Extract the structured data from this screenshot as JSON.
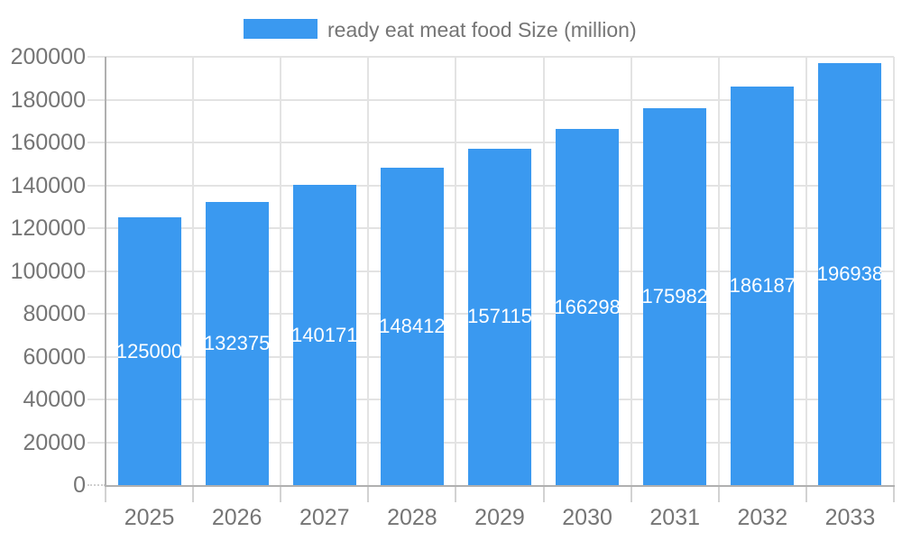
{
  "legend": {
    "label": "ready eat meat food Size (million)"
  },
  "chart_data": {
    "type": "bar",
    "title": "",
    "xlabel": "",
    "ylabel": "",
    "legend_position": "top-center",
    "grid": true,
    "categories": [
      "2025",
      "2026",
      "2027",
      "2028",
      "2029",
      "2030",
      "2031",
      "2032",
      "2033"
    ],
    "series": [
      {
        "name": "ready eat meat food Size (million)",
        "values": [
          125000,
          132375,
          140171,
          148412,
          157115,
          166298,
          175982,
          186187,
          196938
        ]
      }
    ],
    "bar_labels_visible": true,
    "ylim": [
      0,
      200000
    ],
    "yticks": [
      0,
      20000,
      40000,
      60000,
      80000,
      100000,
      120000,
      140000,
      160000,
      180000,
      200000
    ],
    "colors": {
      "bar": "#3a99f0",
      "bar_label": "#ffffff",
      "axis_text": "#757575",
      "gridline": "#e3e3e3",
      "axis_line": "#b0b0b0",
      "tick": "#d2d2d2",
      "zero_tick": "#cfcfcf",
      "background": "#ffffff"
    }
  }
}
